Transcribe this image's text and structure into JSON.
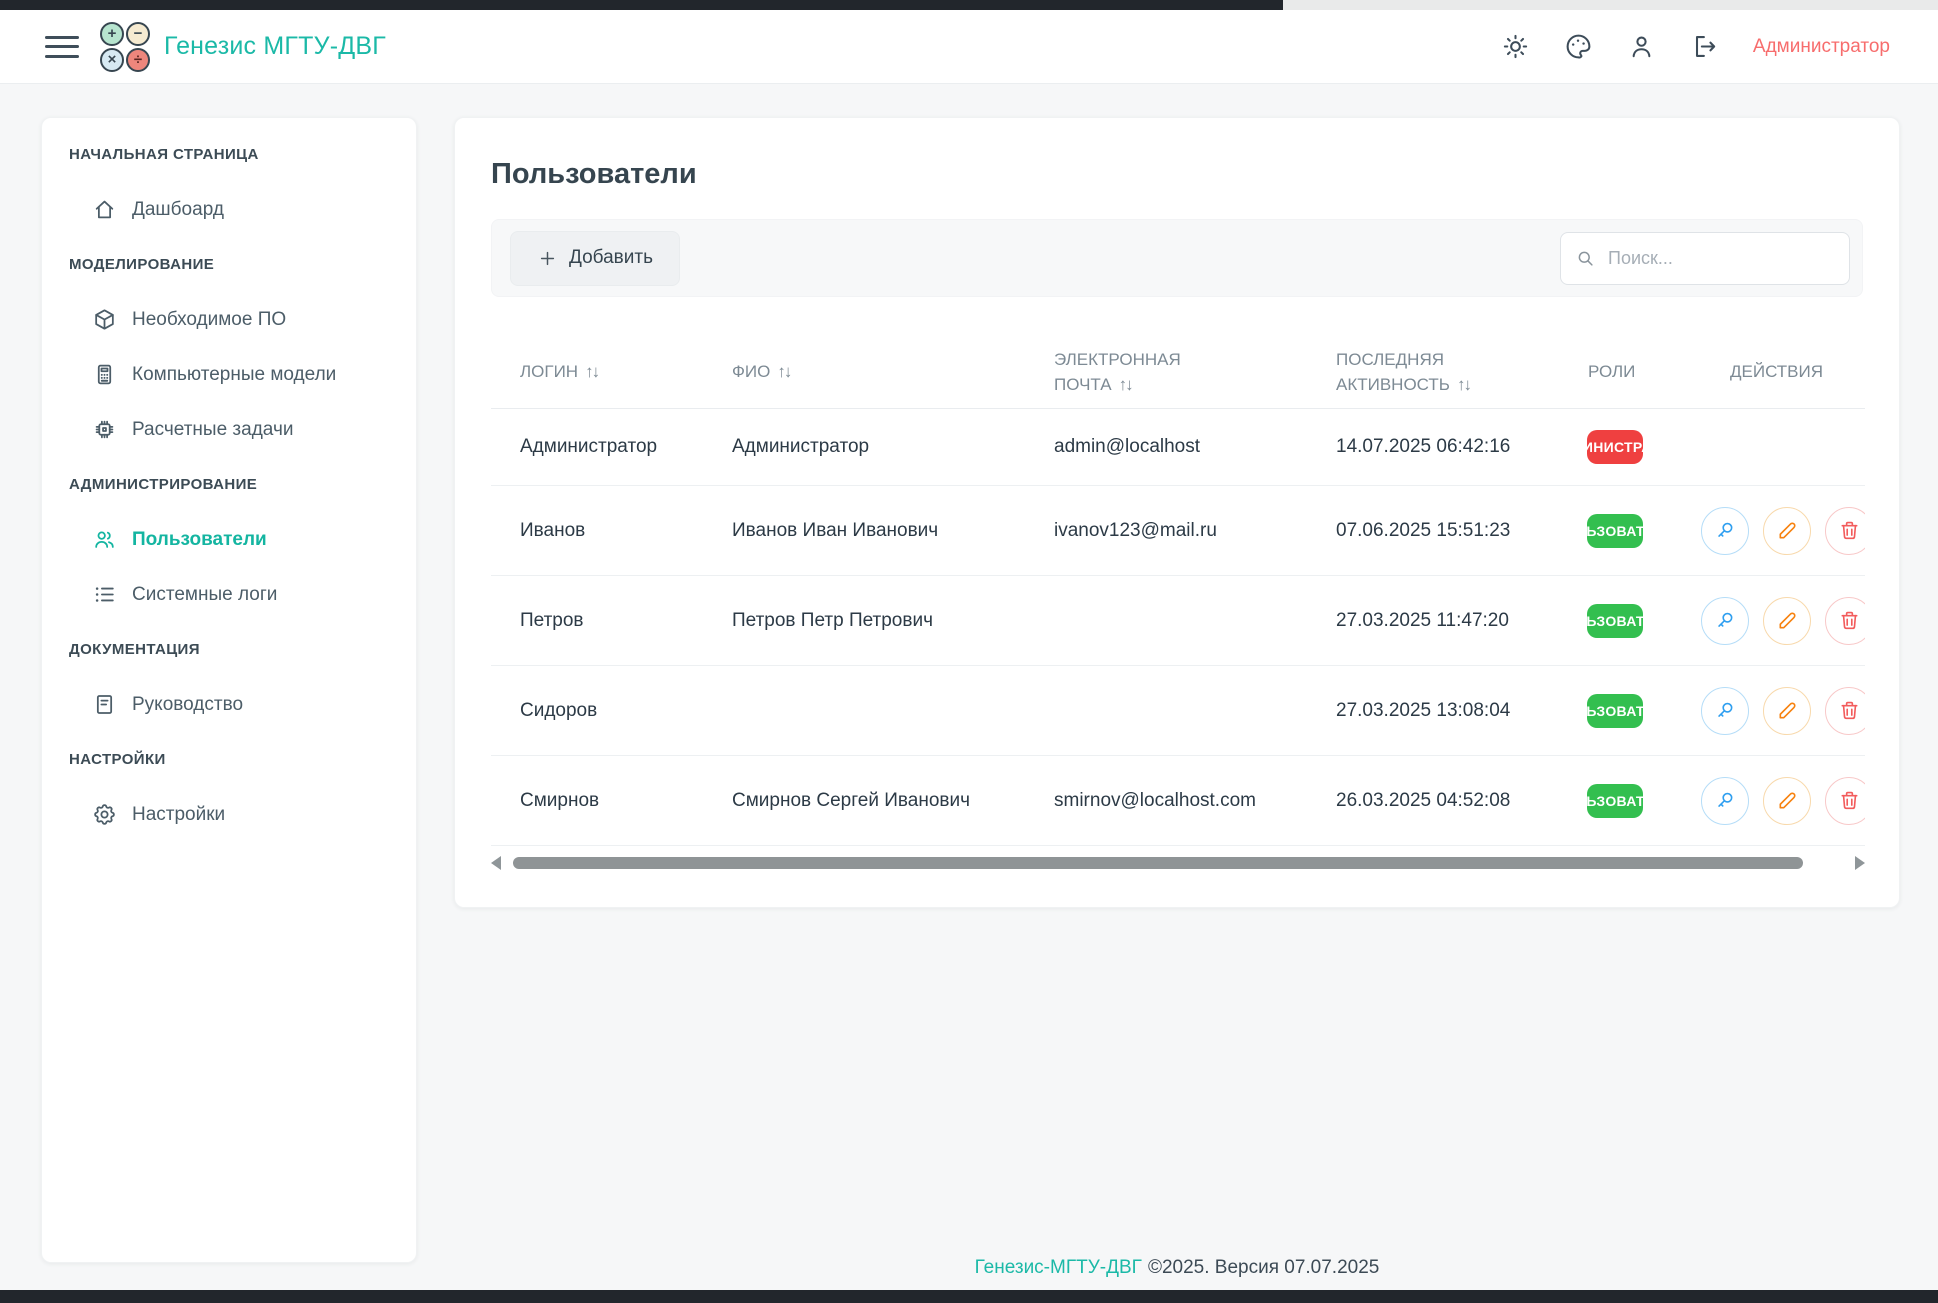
{
  "header": {
    "brand": "Генезис МГТУ-ДВГ",
    "user_label": "Администратор",
    "logo_symbols": [
      "+",
      "−",
      "×",
      "÷"
    ],
    "icons": [
      "menu-icon",
      "sun-icon",
      "palette-icon",
      "user-icon",
      "logout-icon"
    ]
  },
  "sidebar": {
    "sections": [
      {
        "label": "НАЧАЛЬНАЯ СТРАНИЦА",
        "items": [
          {
            "id": "dashboard",
            "label": "Дашбоард",
            "icon": "home-icon",
            "active": false
          }
        ]
      },
      {
        "label": "МОДЕЛИРОВАНИЕ",
        "items": [
          {
            "id": "software",
            "label": "Необходимое ПО",
            "icon": "package-icon",
            "active": false
          },
          {
            "id": "models",
            "label": "Компьютерные модели",
            "icon": "calculator-icon",
            "active": false
          },
          {
            "id": "tasks",
            "label": "Расчетные задачи",
            "icon": "cpu-icon",
            "active": false
          }
        ]
      },
      {
        "label": "АДМИНИСТРИРОВАНИЕ",
        "items": [
          {
            "id": "users",
            "label": "Пользователи",
            "icon": "users-icon",
            "active": true
          },
          {
            "id": "logs",
            "label": "Системные логи",
            "icon": "logs-icon",
            "active": false
          }
        ]
      },
      {
        "label": "ДОКУМЕНТАЦИЯ",
        "items": [
          {
            "id": "manual",
            "label": "Руководство",
            "icon": "manual-icon",
            "active": false
          }
        ]
      },
      {
        "label": "НАСТРОЙКИ",
        "items": [
          {
            "id": "settings",
            "label": "Настройки",
            "icon": "settings-icon",
            "active": false
          }
        ]
      }
    ]
  },
  "main": {
    "title": "Пользователи",
    "add_button": "Добавить",
    "search_placeholder": "Поиск...",
    "table": {
      "columns": [
        {
          "label": "ЛОГИН",
          "sortable": true
        },
        {
          "label": "ФИО",
          "sortable": true
        },
        {
          "label": "ЭЛЕКТРОННАЯ ПОЧТА",
          "sortable": true
        },
        {
          "label": "ПОСЛЕДНЯЯ АКТИВНОСТЬ",
          "sortable": true
        },
        {
          "label": "РОЛИ",
          "sortable": false
        },
        {
          "label": "ДЕЙСТВИЯ",
          "sortable": false
        }
      ],
      "rows": [
        {
          "login": "Администратор",
          "fio": "Администратор",
          "email": "admin@localhost",
          "last_activity": "14.07.2025 06:42:16",
          "role": "АДМИНИСТРАТОР",
          "role_color": "#ef4040",
          "actions": false
        },
        {
          "login": "Иванов",
          "fio": "Иванов Иван Иванович",
          "email": "ivanov123@mail.ru",
          "last_activity": "07.06.2025 15:51:23",
          "role": "ПОЛЬЗОВАТЕЛЬ",
          "role_color": "#33bf4f",
          "actions": true
        },
        {
          "login": "Петров",
          "fio": "Петров Петр Петрович",
          "email": "",
          "last_activity": "27.03.2025 11:47:20",
          "role": "ПОЛЬЗОВАТЕЛЬ",
          "role_color": "#33bf4f",
          "actions": true
        },
        {
          "login": "Сидоров",
          "fio": "",
          "email": "",
          "last_activity": "27.03.2025 13:08:04",
          "role": "ПОЛЬЗОВАТЕЛЬ",
          "role_color": "#33bf4f",
          "actions": true
        },
        {
          "login": "Смирнов",
          "fio": "Смирнов Сергей Иванович",
          "email": "smirnov@localhost.com",
          "last_activity": "26.03.2025 04:52:08",
          "role": "ПОЛЬЗОВАТЕЛЬ",
          "role_color": "#33bf4f",
          "actions": true
        }
      ]
    }
  },
  "footer": {
    "brand_link": "Генезис-МГТУ-ДВГ",
    "copyright": "©2025. Версия 07.07.2025"
  },
  "colors": {
    "brand_teal": "#1bb9a7",
    "active_item": "#14b5a1",
    "admin_badge": "#ef4040",
    "user_badge": "#33bf4f",
    "user_label_red": "#f76d6d",
    "key_action": "#2f9ff0",
    "edit_action": "#f7820f",
    "delete_action": "#f25c5c"
  }
}
